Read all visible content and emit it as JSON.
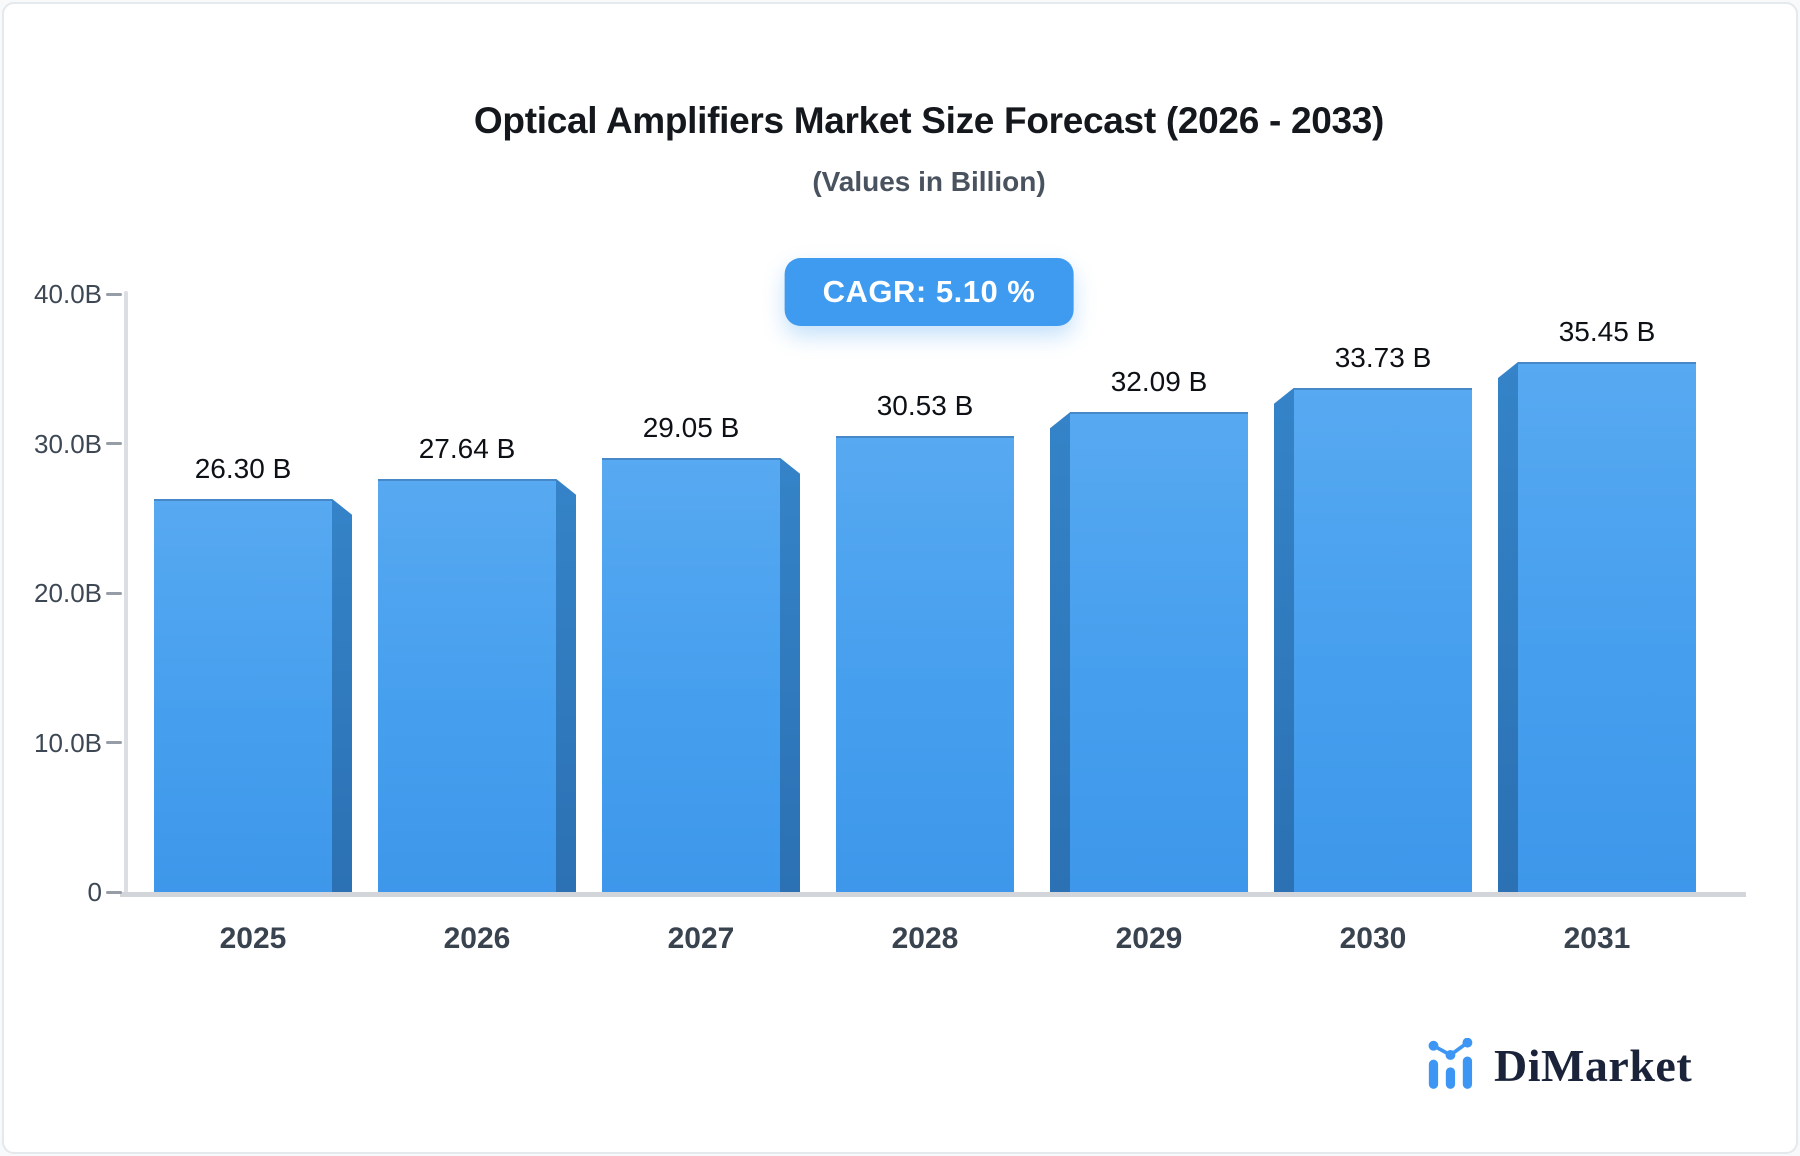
{
  "header": {
    "title": "Optical Amplifiers Market Size Forecast (2026 - 2033)",
    "subtitle": "(Values in Billion)",
    "cagr_label": "CAGR: 5.10 %"
  },
  "chart_data": {
    "type": "bar",
    "title": "Optical Amplifiers Market Size Forecast (2026 - 2033)",
    "subtitle": "(Values in Billion)",
    "annotation": "CAGR: 5.10 %",
    "categories": [
      "2025",
      "2026",
      "2027",
      "2028",
      "2029",
      "2030",
      "2031"
    ],
    "values": [
      26.3,
      27.64,
      29.05,
      30.53,
      32.09,
      33.73,
      35.45
    ],
    "value_labels": [
      "26.30 B",
      "27.64 B",
      "29.05 B",
      "30.53 B",
      "32.09 B",
      "33.73 B",
      "35.45 B"
    ],
    "unit": "Billion",
    "ylim": [
      0,
      40
    ],
    "ytick_values": [
      40,
      30,
      20,
      10,
      0
    ],
    "ytick_labels": [
      "40.0B",
      "30.0B",
      "20.0B",
      "10.0B",
      "0"
    ],
    "grid": false,
    "legend": "none",
    "colors": {
      "bar_face_top": "#57A9F1",
      "bar_face_bottom": "#3E97EA",
      "bar_side_3d": "#2E79BC",
      "accent_badge": "#3E9BF0",
      "axis_line": "#D2D6DA",
      "text_dark": "#14181D"
    }
  },
  "footer": {
    "brand": "DiMarket",
    "brand_icon": "bar-chart-logo-icon"
  }
}
